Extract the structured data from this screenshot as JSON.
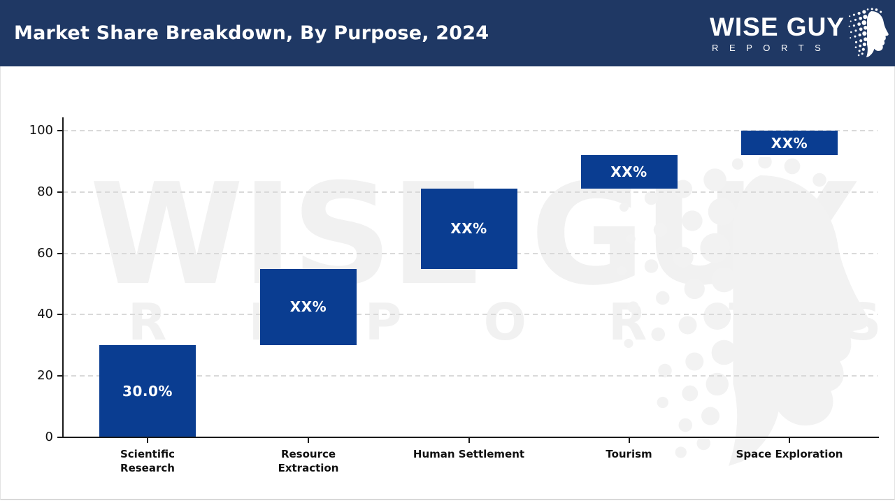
{
  "header": {
    "title": "Market Share Breakdown, By Purpose, 2024",
    "logo_line1": "WISE GUY",
    "logo_line2": "R E P O R T S"
  },
  "watermark": {
    "line1": "WISE GUY",
    "line2": "R E P O R T S"
  },
  "colors": {
    "header_bg": "#1f3864",
    "bar": "#0a3d91",
    "bar_label": "#ffffff",
    "grid": "#d9d9d9",
    "axis": "#1a1a1a",
    "watermark": "#f1f1f1"
  },
  "chart_data": {
    "type": "bar",
    "subtype": "waterfall",
    "title": "Market Share Breakdown, By Purpose, 2024",
    "categories": [
      "Scientific Research",
      "Resource Extraction",
      "Human Settlement",
      "Tourism",
      "Space Exploration"
    ],
    "category_lines": [
      [
        "Scientific",
        "Research"
      ],
      [
        "Resource",
        "Extraction"
      ],
      [
        "Human Settlement"
      ],
      [
        "Tourism"
      ],
      [
        "Space Exploration"
      ]
    ],
    "segments": [
      {
        "category": "Scientific Research",
        "start": 0,
        "end": 30,
        "value": 30,
        "label": "30.0%"
      },
      {
        "category": "Resource Extraction",
        "start": 30,
        "end": 55,
        "value": 25,
        "label": "XX%"
      },
      {
        "category": "Human Settlement",
        "start": 55,
        "end": 81,
        "value": 26,
        "label": "XX%"
      },
      {
        "category": "Tourism",
        "start": 81,
        "end": 92,
        "value": 11,
        "label": "XX%"
      },
      {
        "category": "Space Exploration",
        "start": 92,
        "end": 100,
        "value": 8,
        "label": "XX%"
      }
    ],
    "y_ticks": [
      0,
      20,
      40,
      60,
      80,
      100
    ],
    "ylim": [
      0,
      105
    ],
    "xlabel": "",
    "ylabel": "",
    "grid": "horizontal-dashed",
    "legend": "none"
  }
}
